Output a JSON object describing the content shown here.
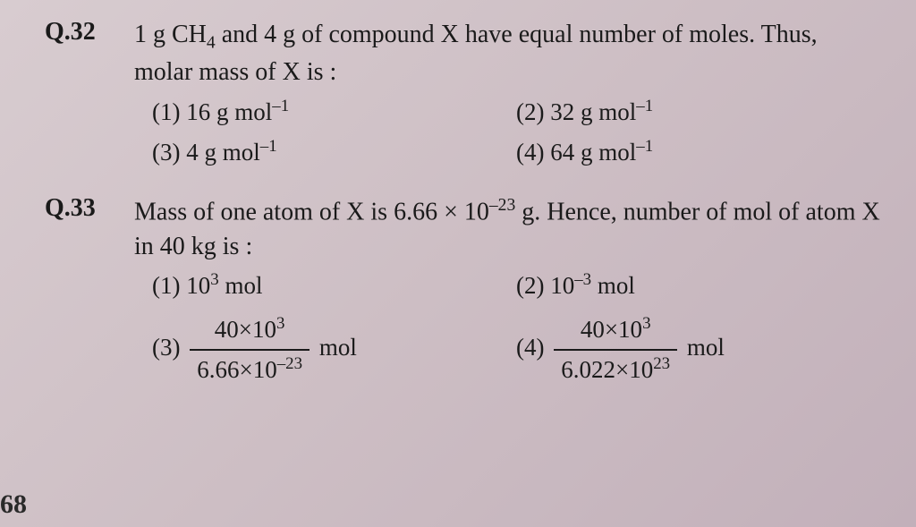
{
  "q32": {
    "number": "Q.32",
    "text_part1": "1 g CH",
    "text_sub1": "4",
    "text_part2": " and 4 g of compound X have equal number of moles. Thus, molar mass of X is :",
    "opt1_label": "(1) 16 g mol",
    "opt1_sup": "–1",
    "opt2_label": "(2) 32 g mol",
    "opt2_sup": "–1",
    "opt3_label": "(3) 4 g mol",
    "opt3_sup": "–1",
    "opt4_label": "(4) 64 g mol",
    "opt4_sup": "–1"
  },
  "q33": {
    "number": "Q.33",
    "text_part1": "Mass of one atom of X is 6.66 × 10",
    "text_sup1": "–23",
    "text_part2": " g. Hence, number of mol of atom X in 40 kg is :",
    "opt1_label": "(1) 10",
    "opt1_sup": "3",
    "opt1_tail": " mol",
    "opt2_label": "(2) 10",
    "opt2_sup": "–3",
    "opt2_tail": " mol",
    "opt3_prefix": "(3) ",
    "opt3_num_a": "40×10",
    "opt3_num_sup": "3",
    "opt3_den_a": "6.66×10",
    "opt3_den_sup": "–23",
    "opt3_tail": " mol",
    "opt4_prefix": "(4) ",
    "opt4_num_a": "40×10",
    "opt4_num_sup": "3",
    "opt4_den_a": "6.022×10",
    "opt4_den_sup": "23",
    "opt4_tail": " mol"
  },
  "page_number": "68"
}
